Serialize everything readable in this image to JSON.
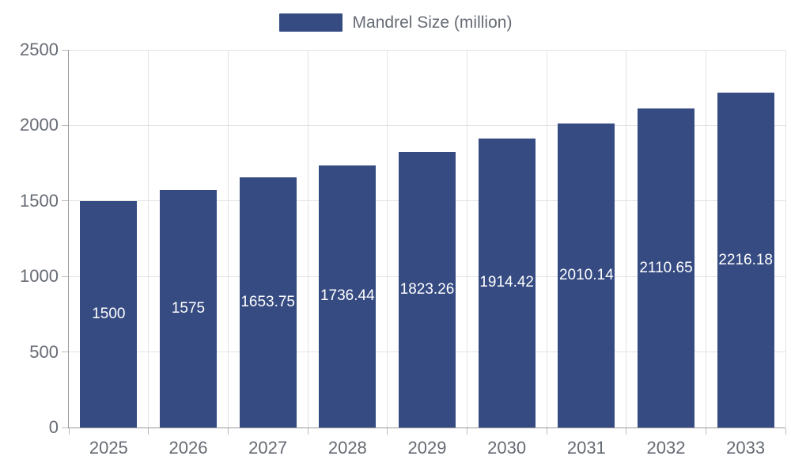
{
  "chart_data": {
    "type": "bar",
    "title": "Mandrel Size (million)",
    "categories": [
      "2025",
      "2026",
      "2027",
      "2028",
      "2029",
      "2030",
      "2031",
      "2032",
      "2033"
    ],
    "values": [
      1500,
      1575,
      1653.75,
      1736.44,
      1823.26,
      1914.42,
      2010.14,
      2110.65,
      2216.18
    ],
    "xlabel": "",
    "ylabel": "",
    "ylim": [
      0,
      2500
    ],
    "yticks": [
      0,
      500,
      1000,
      1500,
      2000,
      2500
    ],
    "grid": true,
    "legend_position": "top",
    "value_label_position": "inside-middle",
    "colors": {
      "bar": "#364B82",
      "grid": "#e3e3e3",
      "axis_line": "#999999",
      "tick": "#bbbbbb",
      "axis_text": "#666b74",
      "value_text": "#ffffff"
    }
  }
}
